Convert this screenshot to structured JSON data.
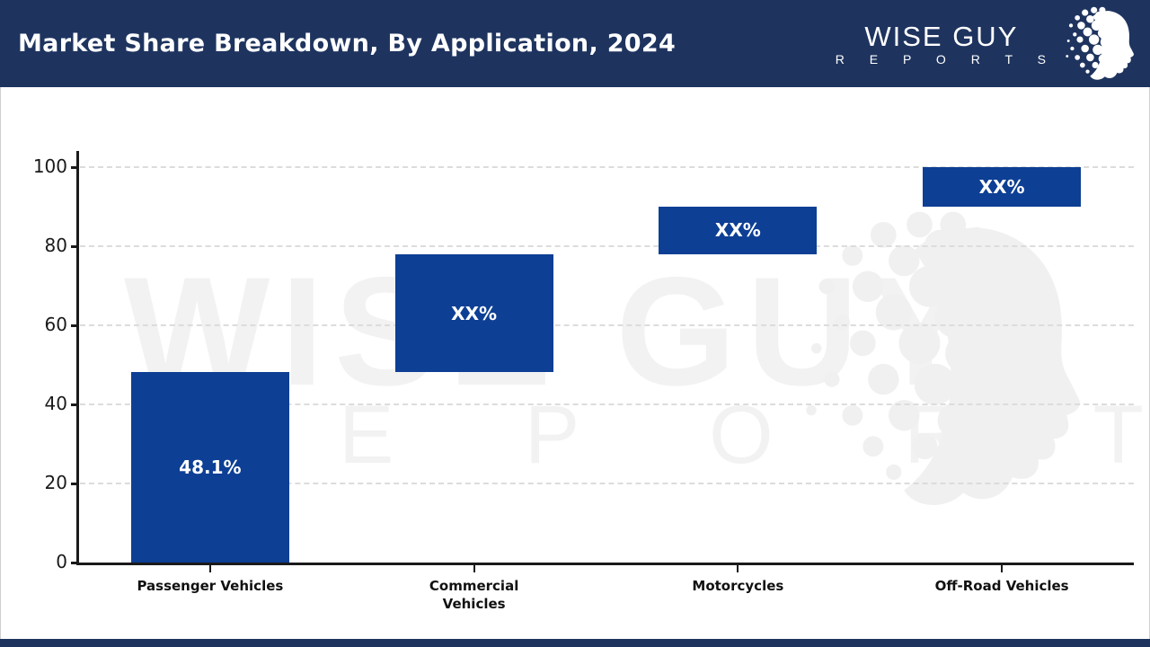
{
  "header": {
    "title": "Market Share Breakdown, By Application, 2024",
    "logo": {
      "line1": "WISE GUY",
      "line2": "R E P O R T S"
    }
  },
  "watermark": {
    "line1": "WISE GUY",
    "line2": "R E P O R T S"
  },
  "chart_data": {
    "type": "bar",
    "subtype": "waterfall",
    "title": "Market Share Breakdown, By Application, 2024",
    "xlabel": "",
    "ylabel": "",
    "ylim": [
      0,
      100
    ],
    "yticks": [
      0,
      20,
      40,
      60,
      80,
      100
    ],
    "grid": "horizontal-dashed",
    "legend": "none",
    "categories": [
      "Passenger Vehicles",
      "Commercial\nVehicles",
      "Motorcycles",
      "Off-Road Vehicles"
    ],
    "segments": [
      {
        "category": "Passenger Vehicles",
        "start": 0,
        "end": 48.1,
        "label": "48.1%"
      },
      {
        "category": "Commercial\nVehicles",
        "start": 48.1,
        "end": 78,
        "label": "XX%"
      },
      {
        "category": "Motorcycles",
        "start": 78,
        "end": 90,
        "label": "XX%"
      },
      {
        "category": "Off-Road Vehicles",
        "start": 90,
        "end": 100,
        "label": "XX%"
      }
    ]
  },
  "colors": {
    "header_bg": "#1e345f",
    "footer_bg": "#1e345f",
    "bar": "#0d3f94",
    "gridline": "#dcdcdc",
    "axis": "#1a1a1a",
    "watermark": "#f2f2f2",
    "bar_label": "#ffffff"
  }
}
